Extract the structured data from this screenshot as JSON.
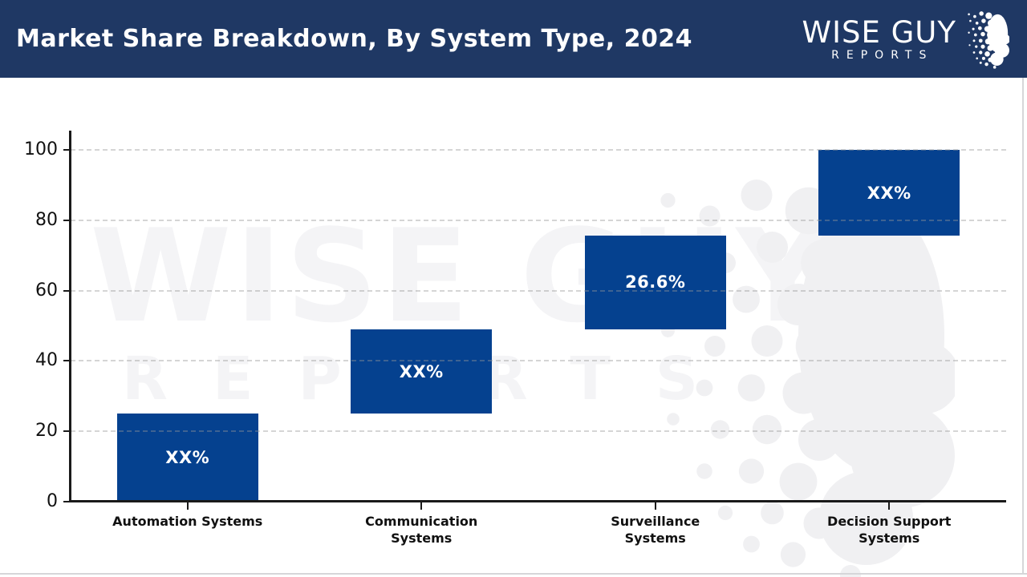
{
  "theme": {
    "header_bg": "#1f3864",
    "bar": "#05418f",
    "grid": "rgba(150,150,150,0.4)",
    "watermark": "#f4f4f6",
    "watermark_face": "#f0f0f2"
  },
  "header": {
    "title": "Market Share Breakdown, By System Type, 2024",
    "logo_line1": "WISE GUY",
    "logo_line2": "REPORTS"
  },
  "watermark": {
    "line1": "WISE GUY",
    "line2": "REPORTS"
  },
  "chart_data": {
    "type": "bar",
    "variant": "waterfall",
    "title": "Market Share Breakdown, By System Type, 2024",
    "categories": [
      [
        "Automation Systems"
      ],
      [
        "Communication",
        "Systems"
      ],
      [
        "Surveillance",
        "Systems"
      ],
      [
        "Decision Support",
        "Systems"
      ]
    ],
    "segments": [
      {
        "category": "Automation Systems",
        "start": 0,
        "end": 25.0,
        "label": "XX%"
      },
      {
        "category": "Communication Systems",
        "start": 25.0,
        "end": 49.0,
        "label": "XX%"
      },
      {
        "category": "Surveillance Systems",
        "start": 49.0,
        "end": 75.6,
        "label": "26.6%"
      },
      {
        "category": "Decision Support Systems",
        "start": 75.6,
        "end": 100.0,
        "label": "XX%"
      }
    ],
    "ylim": [
      0,
      100
    ],
    "yticks": [
      0,
      20,
      40,
      60,
      80,
      100
    ],
    "xlabel": "",
    "ylabel": "",
    "grid": {
      "show": true,
      "style": "dashed",
      "orientation": "horizontal"
    },
    "legend": {
      "show": false
    },
    "bar_value_color": "#ffffff"
  }
}
